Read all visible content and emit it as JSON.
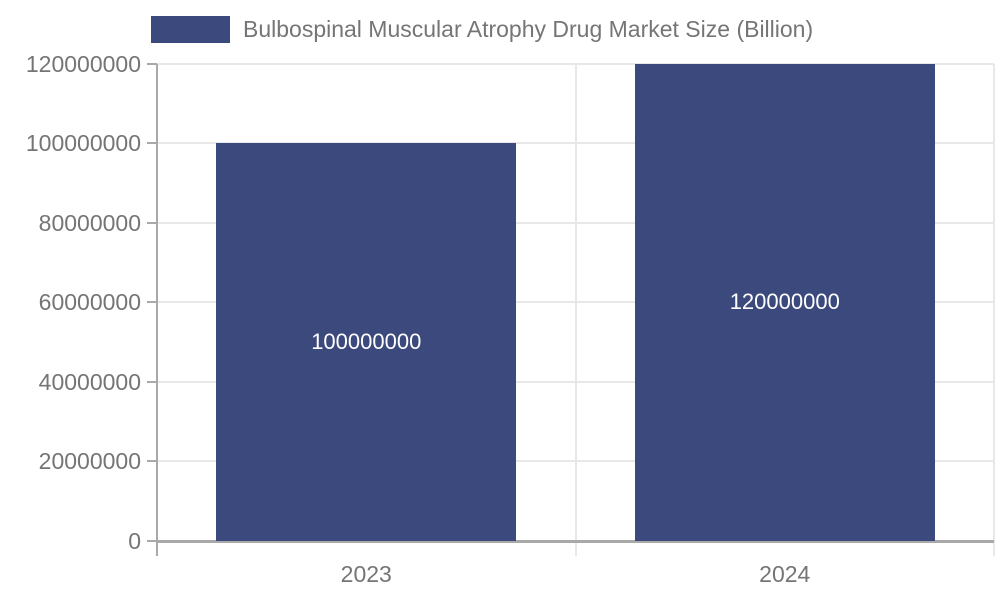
{
  "chart_data": {
    "type": "bar",
    "title": "Bulbospinal Muscular Atrophy Drug Market Size (Billion)",
    "categories": [
      "2023",
      "2024"
    ],
    "series": [
      {
        "name": "Bulbospinal Muscular Atrophy Drug Market Size (Billion)",
        "values": [
          100000000,
          120000000
        ]
      }
    ],
    "data_labels": [
      "100000000",
      "120000000"
    ],
    "xlabel": "",
    "ylabel": "",
    "ylim": [
      0,
      120000000
    ],
    "ytick_step": 20000000,
    "ytick_labels": [
      "0",
      "20000000",
      "40000000",
      "60000000",
      "80000000",
      "100000000",
      "120000000"
    ],
    "grid": true,
    "legend_position": "top-left",
    "colors": {
      "bar": "#3b497d",
      "text": "#757575",
      "bar_label": "#ffffff",
      "gridline": "#e8e8e8",
      "axis_line": "#a9a9a9",
      "background": "#ffffff"
    }
  }
}
